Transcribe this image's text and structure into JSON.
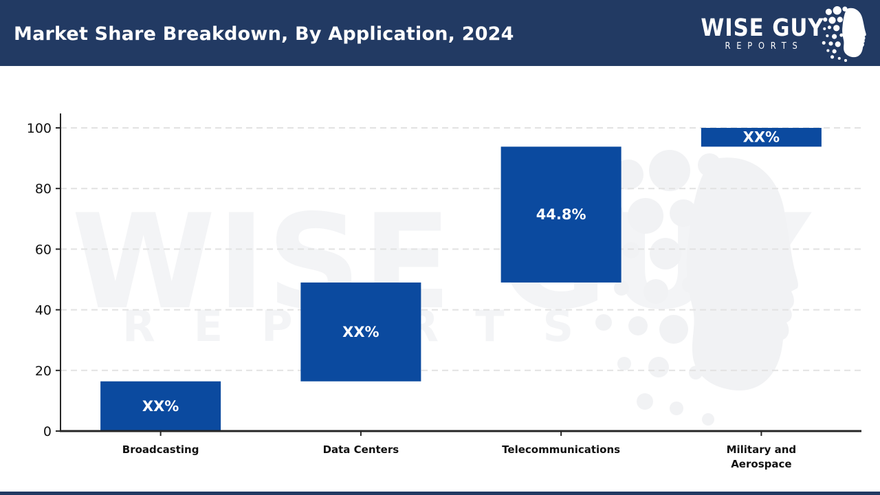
{
  "header": {
    "title": "Market Share Breakdown, By Application, 2024",
    "logo": {
      "line1": "WISE GUY",
      "line2": "REPORTS"
    }
  },
  "watermark": {
    "line1": "WISE GUY",
    "line2": "REPORTS"
  },
  "chart_data": {
    "type": "bar",
    "subtype": "floating-waterfall",
    "title": "Market Share Breakdown, By Application, 2024",
    "units": "%",
    "categories": [
      "Broadcasting",
      "Data Centers",
      "Telecommunications",
      "Military and\nAerospace"
    ],
    "bars": [
      {
        "category": "Broadcasting",
        "from": 0,
        "to": 16.4,
        "label": "XX%"
      },
      {
        "category": "Data Centers",
        "from": 16.4,
        "to": 49.0,
        "label": "XX%"
      },
      {
        "category": "Telecommunications",
        "from": 49.0,
        "to": 93.8,
        "label": "44.8%"
      },
      {
        "category": "Military and Aerospace",
        "from": 93.8,
        "to": 100.0,
        "label": "XX%"
      }
    ],
    "xlabel": "",
    "ylabel": "",
    "ylim": [
      0,
      104.8
    ],
    "yticks": [
      0,
      20,
      40,
      60,
      80,
      100
    ],
    "grid": {
      "axis": "y",
      "style": "dashed",
      "color": "#e2e2e2"
    },
    "legend": null,
    "bar_color": "#0b4a9f",
    "bar_label_color": "#ffffff",
    "axis_color": "#262626",
    "tick_label_color": "#111111"
  },
  "colors": {
    "header_bg": "#223a63",
    "page_bg": "#ffffff",
    "watermark": "#f3f4f6"
  }
}
